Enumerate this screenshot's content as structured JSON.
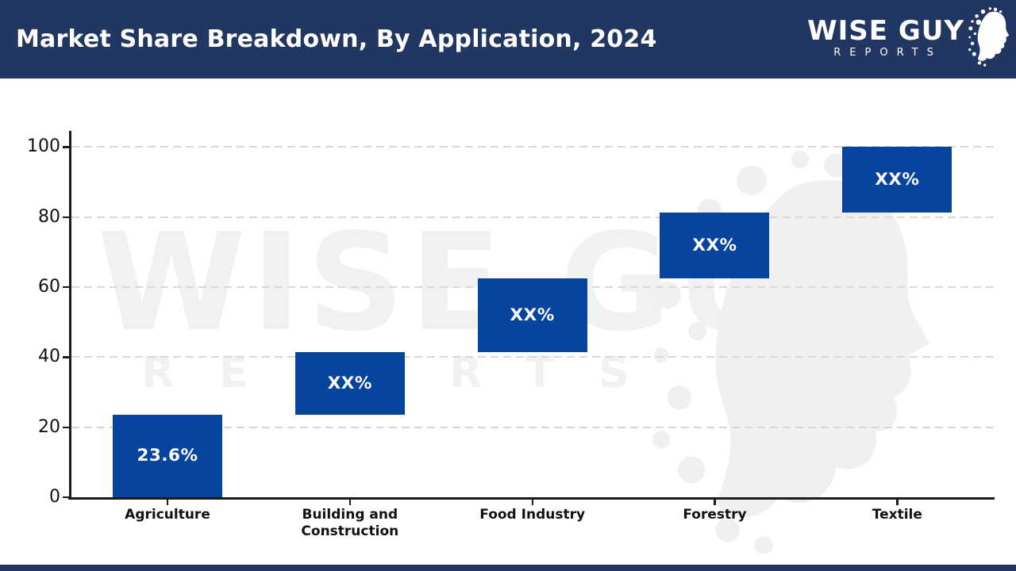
{
  "header": {
    "title": "Market Share Breakdown, By Application, 2024",
    "logo": {
      "line1": "WISE GUY",
      "line2": "REPORTS"
    }
  },
  "watermark": {
    "line1": "WISE GUY",
    "line2": "REPORTS"
  },
  "chart_data": {
    "type": "bar",
    "subtype": "waterfall",
    "title": "Market Share Breakdown, By Application, 2024",
    "xlabel": "",
    "ylabel": "",
    "ylim": [
      0,
      104.6
    ],
    "yticks": [
      0,
      20,
      40,
      60,
      80,
      100
    ],
    "grid": "horizontal-dashed",
    "legend": false,
    "bar_color": "#06449d",
    "bar_label_color": "#ffffff",
    "axis_color": "#1c1c1c",
    "categories": [
      "Agriculture",
      "Building and Construction",
      "Food Industry",
      "Forestry",
      "Textile"
    ],
    "segments": [
      {
        "category": "Agriculture",
        "category_lines": [
          "Agriculture"
        ],
        "start": 0,
        "end": 23.6,
        "value_label": "23.6%"
      },
      {
        "category": "Building and Construction",
        "category_lines": [
          "Building and",
          "Construction"
        ],
        "start": 23.6,
        "end": 41.4,
        "value_label": "XX%"
      },
      {
        "category": "Food Industry",
        "category_lines": [
          "Food Industry"
        ],
        "start": 41.4,
        "end": 62.6,
        "value_label": "XX%"
      },
      {
        "category": "Forestry",
        "category_lines": [
          "Forestry"
        ],
        "start": 62.6,
        "end": 81.2,
        "value_label": "XX%"
      },
      {
        "category": "Textile",
        "category_lines": [
          "Textile"
        ],
        "start": 81.2,
        "end": 100,
        "value_label": "XX%"
      }
    ]
  }
}
